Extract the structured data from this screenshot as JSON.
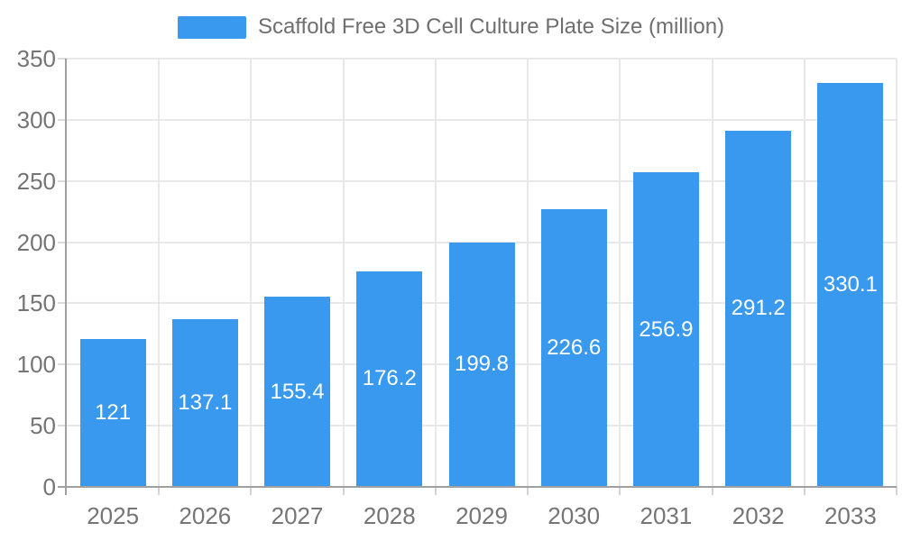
{
  "chart_data": {
    "type": "bar",
    "title": "Scaffold Free 3D Cell Culture Plate Size (million)",
    "legend": {
      "label": "Scaffold Free 3D Cell Culture Plate Size (million)",
      "position": "top"
    },
    "categories": [
      "2025",
      "2026",
      "2027",
      "2028",
      "2029",
      "2030",
      "2031",
      "2032",
      "2033"
    ],
    "values": [
      121,
      137.1,
      155.4,
      176.2,
      199.8,
      226.6,
      256.9,
      291.2,
      330.1
    ],
    "value_labels": [
      "121",
      "137.1",
      "155.4",
      "176.2",
      "199.8",
      "226.6",
      "256.9",
      "291.2",
      "330.1"
    ],
    "xlabel": "",
    "ylabel": "",
    "ylim": [
      0,
      350
    ],
    "y_ticks": [
      0,
      50,
      100,
      150,
      200,
      250,
      300,
      350
    ],
    "grid": "both",
    "colors": {
      "bar": "#3899ee",
      "grid": "#e8e8e8",
      "axis": "#a0a0a0",
      "tick_text": "#757575",
      "legend_text": "#6f6f6f",
      "bar_label_text": "#ffffff",
      "background": "#ffffff"
    }
  }
}
